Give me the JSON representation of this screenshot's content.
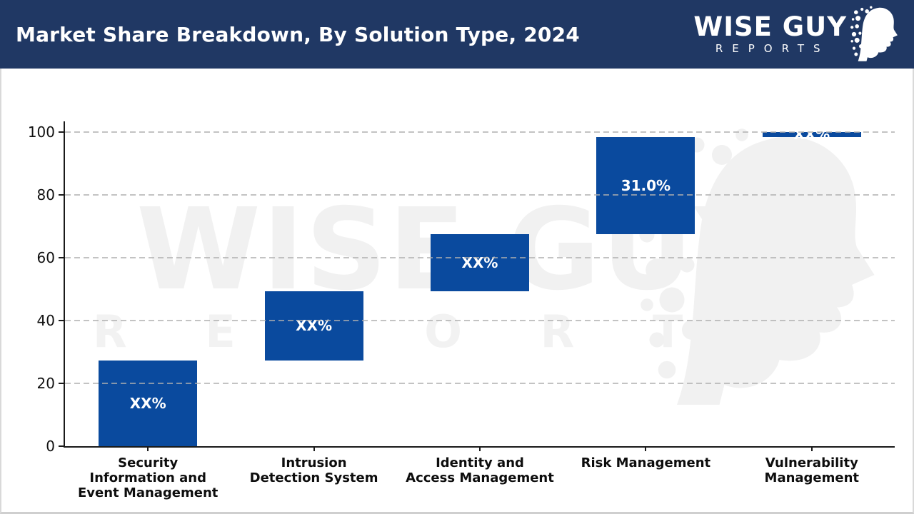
{
  "header": {
    "title": "Market Share Breakdown, By Solution Type, 2024",
    "logo": {
      "brand": "WISE GUY",
      "sub": "REPORTS"
    }
  },
  "watermark": {
    "brand": "WISE GUY",
    "sub": "R E P O R T S"
  },
  "colors": {
    "header_bg": "#203864",
    "bar": "#0a4a9e",
    "axis": "#1a1a1a",
    "grid": "#c9c9c9",
    "bar_label": "#ffffff",
    "tick_label": "#111111",
    "watermark": "#f1f1f1"
  },
  "chart_data": {
    "type": "bar",
    "subtype": "waterfall",
    "title": "Market Share Breakdown, By Solution Type, 2024",
    "xlabel": "",
    "ylabel": "",
    "ylim": [
      0,
      104
    ],
    "yticks": [
      0,
      20,
      40,
      60,
      80,
      100
    ],
    "grid": "horizontal-dashed",
    "legend": "none",
    "bar_color": "#0a4a9e",
    "categories": [
      {
        "name": "Security Information and Event Management",
        "label_lines": [
          "Security",
          "Information and",
          "Event Management"
        ],
        "start": 0,
        "end": 27.3,
        "value": 27.3,
        "value_label": "XX%"
      },
      {
        "name": "Intrusion Detection System",
        "label_lines": [
          "Intrusion",
          "Detection System"
        ],
        "start": 27.3,
        "end": 49.3,
        "value": 22.0,
        "value_label": "XX%"
      },
      {
        "name": "Identity and Access Management",
        "label_lines": [
          "Identity and",
          "Access Management"
        ],
        "start": 49.3,
        "end": 67.5,
        "value": 18.2,
        "value_label": "XX%"
      },
      {
        "name": "Risk Management",
        "label_lines": [
          "Risk Management"
        ],
        "start": 67.5,
        "end": 98.5,
        "value": 31.0,
        "value_label": "31.0%"
      },
      {
        "name": "Vulnerability Management",
        "label_lines": [
          "Vulnerability",
          "Management"
        ],
        "start": 98.5,
        "end": 100,
        "value": 1.5,
        "value_label": "XX%"
      }
    ]
  }
}
